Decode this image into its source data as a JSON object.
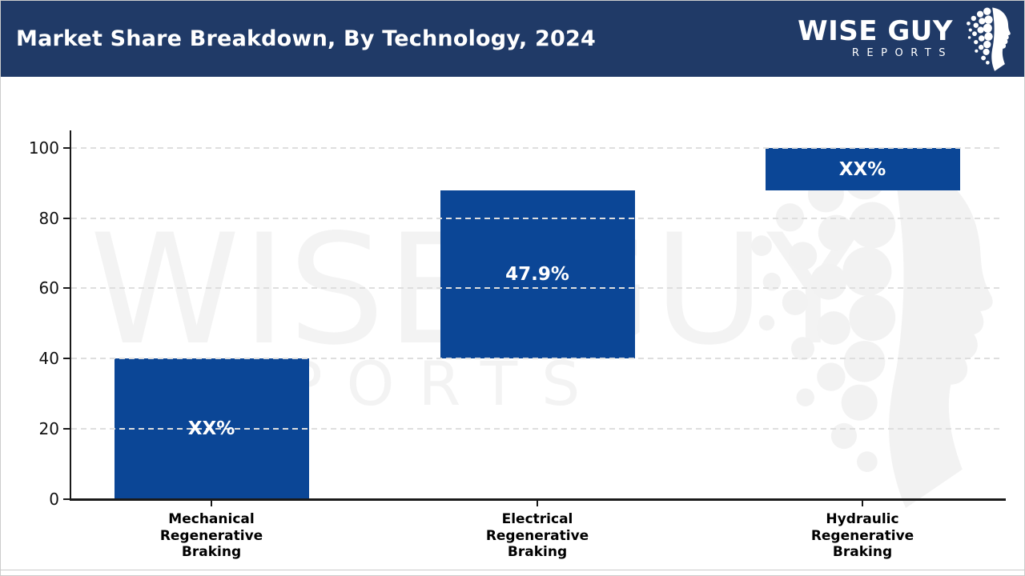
{
  "header": {
    "title": "Market Share Breakdown, By Technology, 2024",
    "logo": {
      "name": "WISE GUY",
      "sub": "REPORTS"
    }
  },
  "watermark": {
    "name": "WISE GUY",
    "sub": "REPORTS"
  },
  "chart_data": {
    "type": "bar",
    "subtype": "waterfall",
    "title": "Market Share Breakdown, By Technology, 2024",
    "categories": [
      "Mechanical Regenerative Braking",
      "Electrical Regenerative Braking",
      "Hydraulic Regenerative Braking"
    ],
    "category_lines": [
      "Mechanical\nRegenerative\nBraking",
      "Electrical\nRegenerative\nBraking",
      "Hydraulic\nRegenerative\nBraking"
    ],
    "segments": [
      {
        "category": "Mechanical Regenerative Braking",
        "start": 0,
        "end": 40,
        "value": 40,
        "label": "XX%"
      },
      {
        "category": "Electrical Regenerative Braking",
        "start": 40,
        "end": 87.9,
        "value": 47.9,
        "label": "47.9%"
      },
      {
        "category": "Hydraulic Regenerative Braking",
        "start": 87.9,
        "end": 100,
        "value": 12.1,
        "label": "XX%"
      }
    ],
    "ylim": [
      0,
      100
    ],
    "yticks": [
      0,
      20,
      40,
      60,
      80,
      100
    ],
    "xlabel": "",
    "ylabel": "",
    "grid": "horizontal-dashed",
    "legend": "none",
    "colors": {
      "bar": "#0b4696",
      "header_bg": "#203a67",
      "grid": "#dedede",
      "axis": "#1a1a1a",
      "watermark": "#f3f3f3",
      "value_label_text": "#ffffff",
      "title_text": "#ffffff",
      "tick_text": "#111111"
    }
  }
}
